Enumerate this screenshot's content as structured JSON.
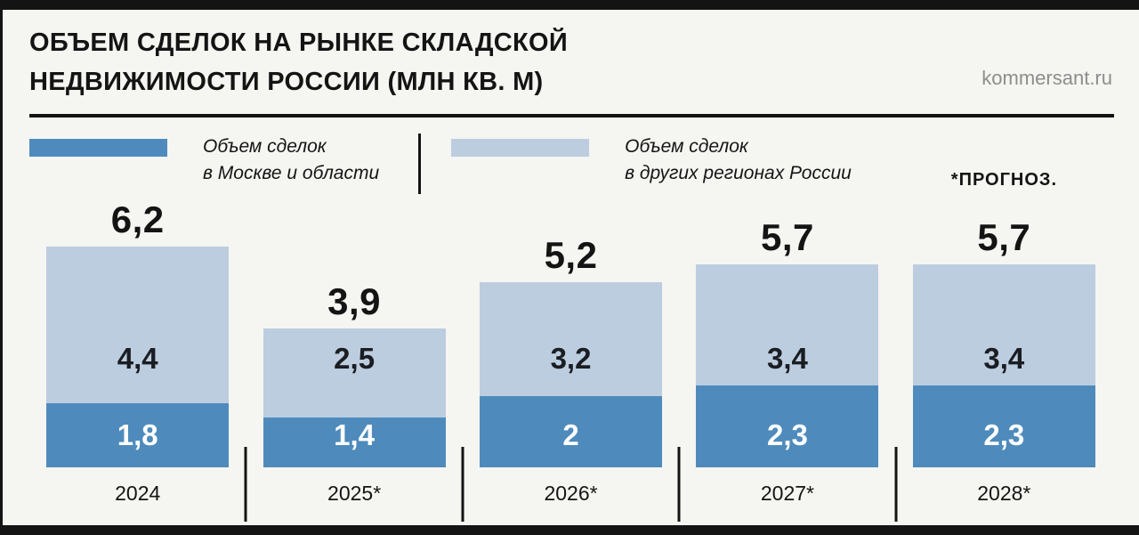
{
  "frame": {
    "background": "#f5f5f1",
    "border_color": "#141414"
  },
  "header": {
    "title_line1": "ОБЪЕМ СДЕЛОК НА РЫНКЕ СКЛАДСКОЙ",
    "title_line2": "НЕДВИЖИМОСТИ РОССИИ (МЛН КВ. М)",
    "source": "kommersant.ru"
  },
  "legend": {
    "items": [
      {
        "line1": "Объем сделок",
        "line2": "в Москве и области",
        "color": "#4e8bbc"
      },
      {
        "line1": "Объем сделок",
        "line2": "в других регионах России",
        "color": "#bccddf"
      }
    ],
    "note": "*ПРОГНОЗ."
  },
  "chart_data": {
    "type": "bar",
    "stacked": true,
    "title": "Объем сделок на рынке складской недвижимости России (млн кв. м)",
    "unit": "млн кв. м",
    "categories": [
      "2024",
      "2025*",
      "2026*",
      "2027*",
      "2028*"
    ],
    "series": [
      {
        "name": "Объем сделок в Москве и области",
        "color": "#4e8bbc",
        "values": [
          1.8,
          1.4,
          2,
          2.3,
          2.3
        ],
        "labels": [
          "1,8",
          "1,4",
          "2",
          "2,3",
          "2,3"
        ]
      },
      {
        "name": "Объем сделок в других регионах России",
        "color": "#bccddf",
        "values": [
          4.4,
          2.5,
          3.2,
          3.4,
          3.4
        ],
        "labels": [
          "4,4",
          "2,5",
          "3,2",
          "3,4",
          "3,4"
        ]
      }
    ],
    "totals": [
      6.2,
      3.9,
      5.2,
      5.7,
      5.7
    ],
    "total_labels": [
      "6,2",
      "3,9",
      "5,2",
      "5,7",
      "5,7"
    ],
    "ylim": [
      0,
      6.5
    ],
    "legend_position": "top",
    "grid": false
  }
}
